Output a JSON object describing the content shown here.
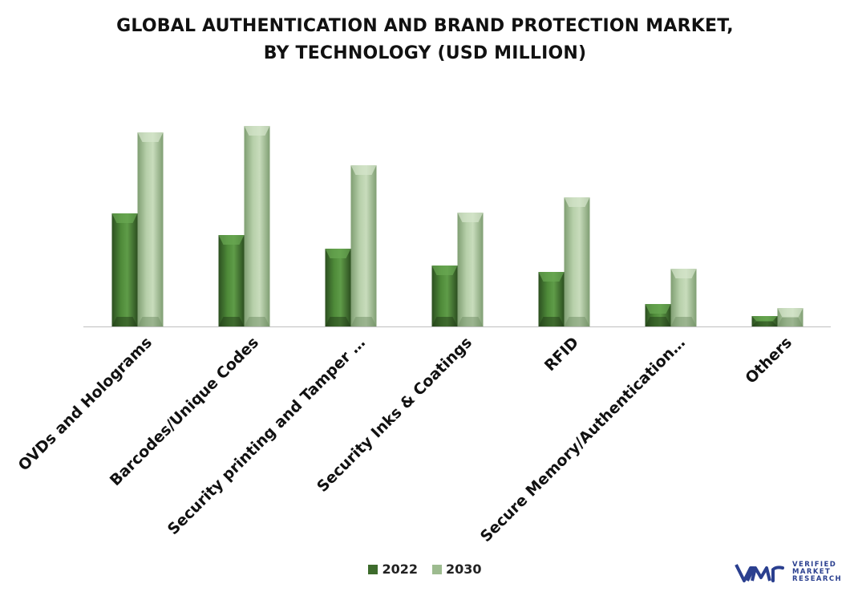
{
  "title_line1": "GLOBAL AUTHENTICATION AND BRAND PROTECTION MARKET,",
  "title_line2": "BY TECHNOLOGY (USD MILLION)",
  "chart_data": {
    "type": "bar",
    "categories": [
      "OVDs and Holograms",
      "Barcodes/Unique Codes",
      "Security printing and Tamper …",
      "Security Inks & Coatings",
      "RFID",
      "Secure Memory/Authentication…",
      "Others"
    ],
    "series": [
      {
        "name": "2022",
        "values": [
          141,
          114,
          97,
          76,
          68,
          28,
          13
        ],
        "color": "#3d6b2c"
      },
      {
        "name": "2030",
        "values": [
          242,
          250,
          201,
          142,
          161,
          72,
          23
        ],
        "color": "#9dbb8f"
      }
    ],
    "ylim": [
      0,
      260
    ],
    "grid": false,
    "legend": "bottom-center",
    "xlabel": "",
    "ylabel": ""
  },
  "logo": {
    "mark": "vmr",
    "line1": "VERIFIED",
    "line2": "MARKET",
    "line3": "RESEARCH",
    "registered": "®",
    "color": "#2a3f8f"
  }
}
